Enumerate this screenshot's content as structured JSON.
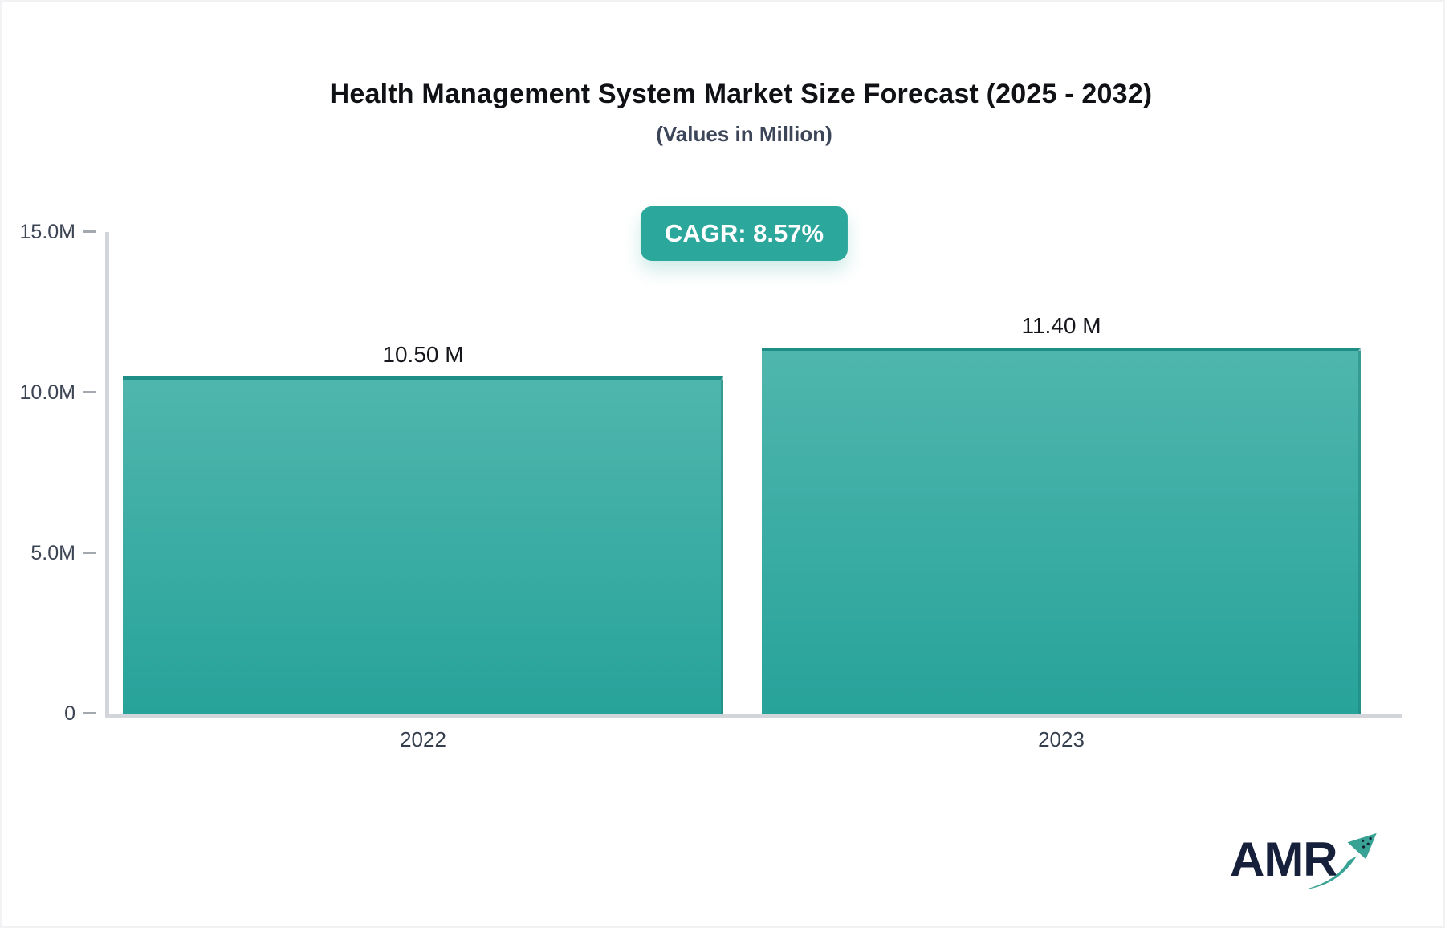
{
  "title": "Health Management System Market Size Forecast (2025 - 2032)",
  "subtitle": "(Values in Million)",
  "cagr": {
    "label": "CAGR: 8.57%",
    "value": "8.57%"
  },
  "logo": {
    "text": "AMR",
    "arrow_icon": "growth-arrow"
  },
  "colors": {
    "accent_teal": "#2BA79C",
    "bar_gradient_top": "#4FB6AD",
    "bar_gradient_bottom": "#27A39A",
    "bar_border": "#1E8E87",
    "axis_line": "#D2D5DA",
    "tick_dash": "#A4A8AF",
    "tick_label": "#3D4554",
    "title_text": "#0F1115",
    "subtitle_text": "#3C4658",
    "logo_navy": "#16203A"
  },
  "chart_data": {
    "type": "bar",
    "title": "Health Management System Market Size Forecast (2025 - 2032)",
    "subtitle": "(Values in Million)",
    "unit": "Million",
    "categories": [
      "2022",
      "2023"
    ],
    "values": [
      10.5,
      11.4
    ],
    "value_labels": [
      "10.50 M",
      "11.40 M"
    ],
    "ylim": [
      0,
      15
    ],
    "yticks": [
      {
        "value": 0,
        "label": "0"
      },
      {
        "value": 5,
        "label": "5.0M"
      },
      {
        "value": 10,
        "label": "10.0M"
      },
      {
        "value": 15,
        "label": "15.0M"
      }
    ],
    "grid": false,
    "legend": false,
    "annotations": [
      "CAGR: 8.57%"
    ]
  }
}
